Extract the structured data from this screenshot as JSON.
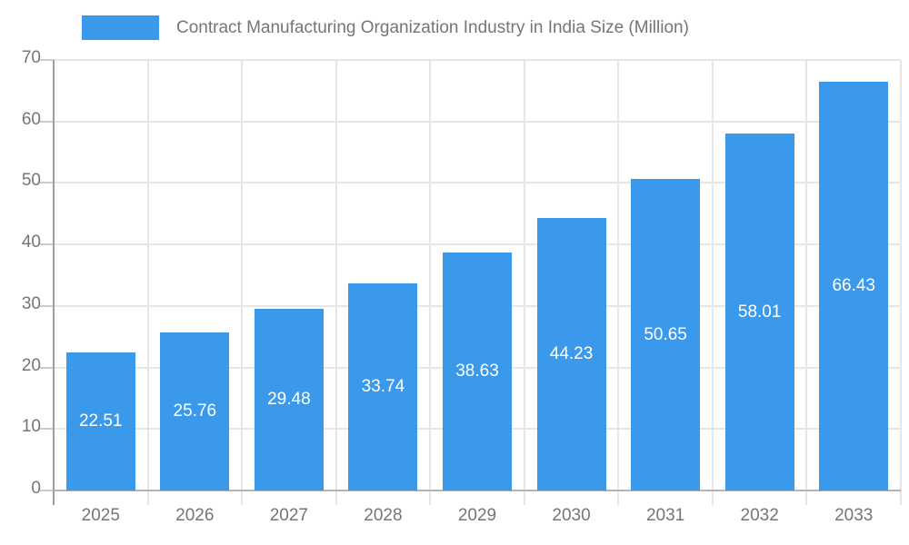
{
  "legend": {
    "label": "Contract Manufacturing Organization Industry in India Size (Million)"
  },
  "chart_data": {
    "type": "bar",
    "title": "Contract Manufacturing Organization Industry in India Size (Million)",
    "categories": [
      "2025",
      "2026",
      "2027",
      "2028",
      "2029",
      "2030",
      "2031",
      "2032",
      "2033"
    ],
    "values": [
      22.51,
      25.76,
      29.48,
      33.74,
      38.63,
      44.23,
      50.65,
      58.01,
      66.43
    ],
    "bar_labels": [
      "22.51",
      "25.76",
      "29.48",
      "33.74",
      "38.63",
      "44.23",
      "50.65",
      "58.01",
      "66.43"
    ],
    "xlabel": "",
    "ylabel": "",
    "ylim": [
      0,
      70
    ],
    "yticks": [
      0,
      10,
      20,
      30,
      40,
      50,
      60,
      70
    ],
    "grid": true,
    "legend_position": "top",
    "colors": {
      "bar": "#3B99EC",
      "bar_label": "#FFFFFF",
      "axis_text": "#757575",
      "legend_text": "#757575",
      "gridline": "#E6E6E6",
      "tick": "#CCCCCC",
      "axis_line": "#9E9E9E",
      "baseline": "#B3B3B3",
      "background": "#FFFFFF"
    }
  }
}
